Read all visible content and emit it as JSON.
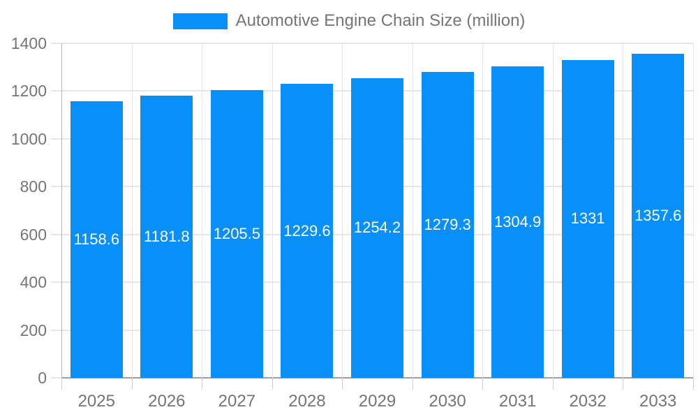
{
  "legend": {
    "swatch_color": "#0890f8"
  },
  "chart_data": {
    "type": "bar",
    "title": "Automotive Engine Chain Size (million)",
    "categories": [
      "2025",
      "2026",
      "2027",
      "2028",
      "2029",
      "2030",
      "2031",
      "2032",
      "2033"
    ],
    "values": [
      1158.6,
      1181.8,
      1205.5,
      1229.6,
      1254.2,
      1279.3,
      1304.9,
      1331,
      1357.6
    ],
    "value_labels": [
      "1158.6",
      "1181.8",
      "1205.5",
      "1229.6",
      "1254.2",
      "1279.3",
      "1304.9",
      "1331",
      "1357.6"
    ],
    "xlabel": "",
    "ylabel": "",
    "ylim": [
      0,
      1400
    ],
    "ytick_step": 200,
    "ytick_labels": [
      "0",
      "200",
      "400",
      "600",
      "800",
      "1000",
      "1200",
      "1400"
    ],
    "grid": true,
    "legend_position": "top-center",
    "colors": {
      "bar": "#0890f8",
      "value_label": "#ffffff",
      "axis_text": "#757575",
      "grid_line": "#e6e6e6",
      "x_axis_line": "#9e9e9e",
      "y_axis_line": "#b3b3b3",
      "tick": "#cfcfcf"
    }
  }
}
